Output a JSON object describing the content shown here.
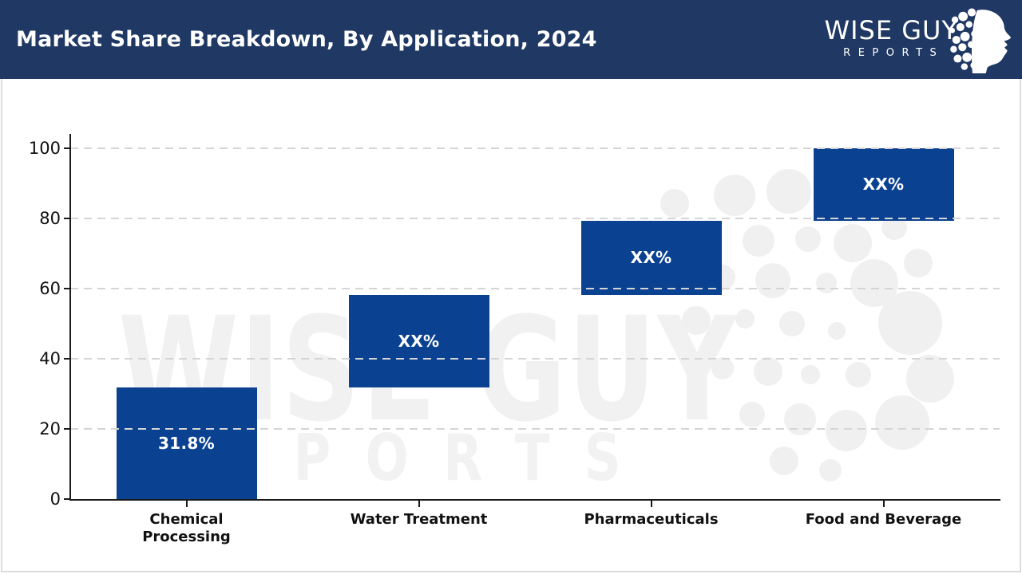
{
  "header": {
    "title": "Market Share Breakdown, By Application, 2024",
    "logo": {
      "primary": "WISE GUY",
      "secondary": "REPORTS"
    }
  },
  "watermark": {
    "primary": "WISE GUY",
    "secondary": "REPORTS"
  },
  "colors": {
    "header_bg": "#1f3864",
    "bar": "#0b4191",
    "bar_label": "#ffffff",
    "axis": "#1a1a1a",
    "gridline": "#d5d5d5",
    "watermark": "#f1f1f1",
    "border": "#dcdcdc"
  },
  "chart_data": {
    "type": "bar",
    "subtype": "waterfall",
    "title": "Market Share Breakdown, By Application, 2024",
    "categories": [
      "Chemical Processing",
      "Water Treatment",
      "Pharmaceuticals",
      "Food and Beverage"
    ],
    "category_display": [
      "Chemical\nProcessing",
      "Water Treatment",
      "Pharmaceuticals",
      "Food and Beverage"
    ],
    "segments": [
      {
        "category": "Chemical Processing",
        "start": 0,
        "end": 31.8,
        "label": "31.8%"
      },
      {
        "category": "Water Treatment",
        "start": 31.8,
        "end": 58.2,
        "label": "XX%"
      },
      {
        "category": "Pharmaceuticals",
        "start": 58.2,
        "end": 79.4,
        "label": "XX%"
      },
      {
        "category": "Food and Beverage",
        "start": 79.4,
        "end": 100,
        "label": "XX%"
      }
    ],
    "xlabel": "",
    "ylabel": "",
    "ylim": [
      0,
      100
    ],
    "yticks": [
      0,
      20,
      40,
      60,
      80,
      100
    ],
    "grid": "horizontal-dashed",
    "legend": null
  }
}
